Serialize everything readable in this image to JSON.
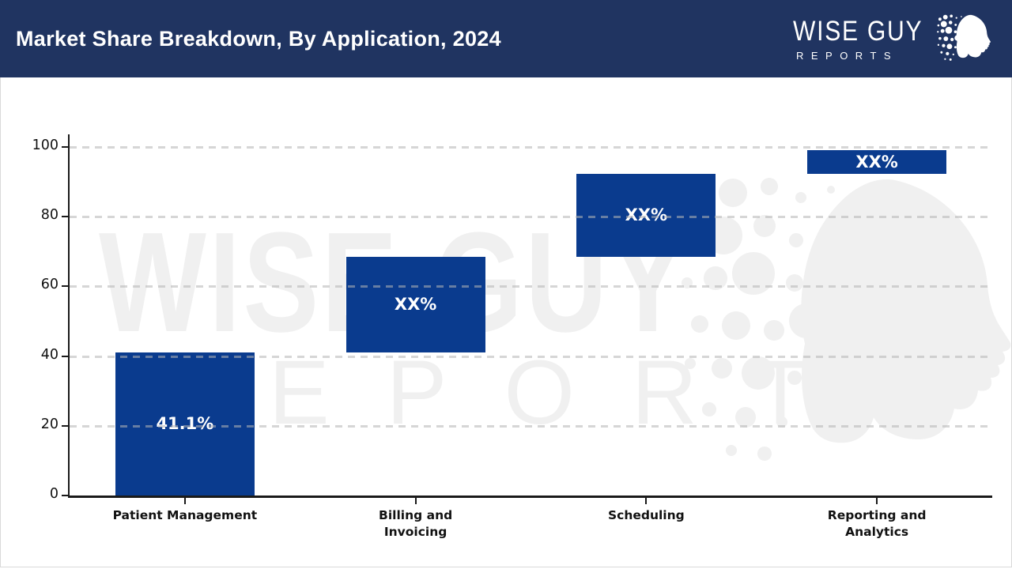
{
  "header": {
    "title": "Market Share Breakdown, By Application, 2024",
    "brand": {
      "name_top": "WISE GUY",
      "name_bottom": "REPORTS"
    }
  },
  "watermark": {
    "name_top": "WISE GUY",
    "name_bottom": "REPORTS"
  },
  "colors": {
    "header_bg": "#203461",
    "bar": "#0a3b8e",
    "bar_label": "#ffffff",
    "grid": "#bcbcbc",
    "axis": "#1a1a1a",
    "watermark": "#f0f0f0",
    "frame": "#d9d9d9"
  },
  "chart_data": {
    "type": "bar",
    "subtype": "waterfall",
    "title": "Market Share Breakdown, By Application, 2024",
    "unit": "%",
    "categories": [
      [
        "Patient Management"
      ],
      [
        "Billing and",
        "Invoicing"
      ],
      [
        "Scheduling"
      ],
      [
        "Reporting and",
        "Analytics"
      ]
    ],
    "segments": [
      {
        "category": "Patient Management",
        "start": 0,
        "end": 41.1,
        "label": "41.1%"
      },
      {
        "category": "Billing and Invoicing",
        "start": 41.1,
        "end": 68.5,
        "label": "XX%"
      },
      {
        "category": "Scheduling",
        "start": 68.5,
        "end": 92.3,
        "label": "XX%"
      },
      {
        "category": "Reporting and Analytics",
        "start": 92.3,
        "end": 99.2,
        "label": "XX%"
      }
    ],
    "ylim": [
      0,
      104
    ],
    "yticks": [
      0,
      20,
      40,
      60,
      80,
      100
    ],
    "xlabel": "",
    "ylabel": "",
    "grid": "horizontal-dashed",
    "legend": "none"
  }
}
